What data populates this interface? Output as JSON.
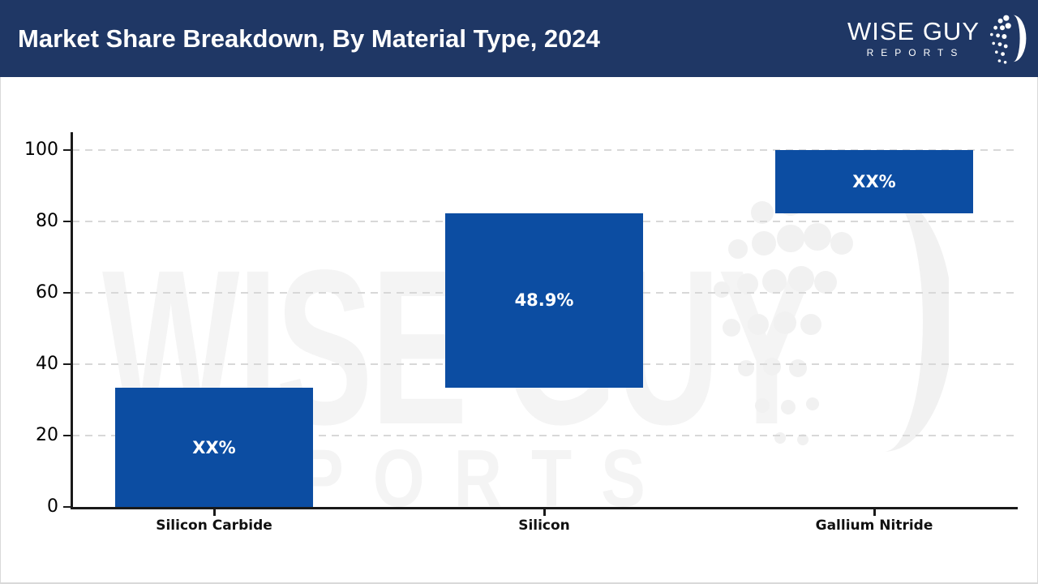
{
  "header": {
    "title": "Market Share Breakdown, By Material Type, 2024",
    "logo": {
      "line1": "WISE GUY",
      "line2": "REPORTS"
    }
  },
  "watermark": {
    "line1": "WISE GUY",
    "line2": "REPORTS"
  },
  "theme": {
    "header_bg": "#1F3765",
    "title_text": "#FFFFFF",
    "bar_color": "#0C4DA2",
    "axis_color": "#1A1A1A",
    "grid_color": "#D8D8D8",
    "watermark_color": "#F4F4F4"
  },
  "chart_data": {
    "type": "bar",
    "subtype": "floating-breakdown-waterfall",
    "title": "Market Share Breakdown, By Material Type, 2024",
    "categories": [
      "Silicon Carbide",
      "Silicon",
      "Gallium Nitride"
    ],
    "bars": [
      {
        "category": "Silicon Carbide",
        "start": 0,
        "end": 33.4,
        "label": "XX%"
      },
      {
        "category": "Silicon",
        "start": 33.4,
        "end": 82.3,
        "label": "48.9%"
      },
      {
        "category": "Gallium Nitride",
        "start": 82.3,
        "end": 100,
        "label": "XX%"
      }
    ],
    "ylim": [
      0,
      100
    ],
    "yticks": [
      0,
      20,
      40,
      60,
      80,
      100
    ],
    "xlabel": "",
    "ylabel": "",
    "grid": "horizontal-dashed",
    "legend": "none",
    "bar_label_color": "#FFFFFF"
  }
}
